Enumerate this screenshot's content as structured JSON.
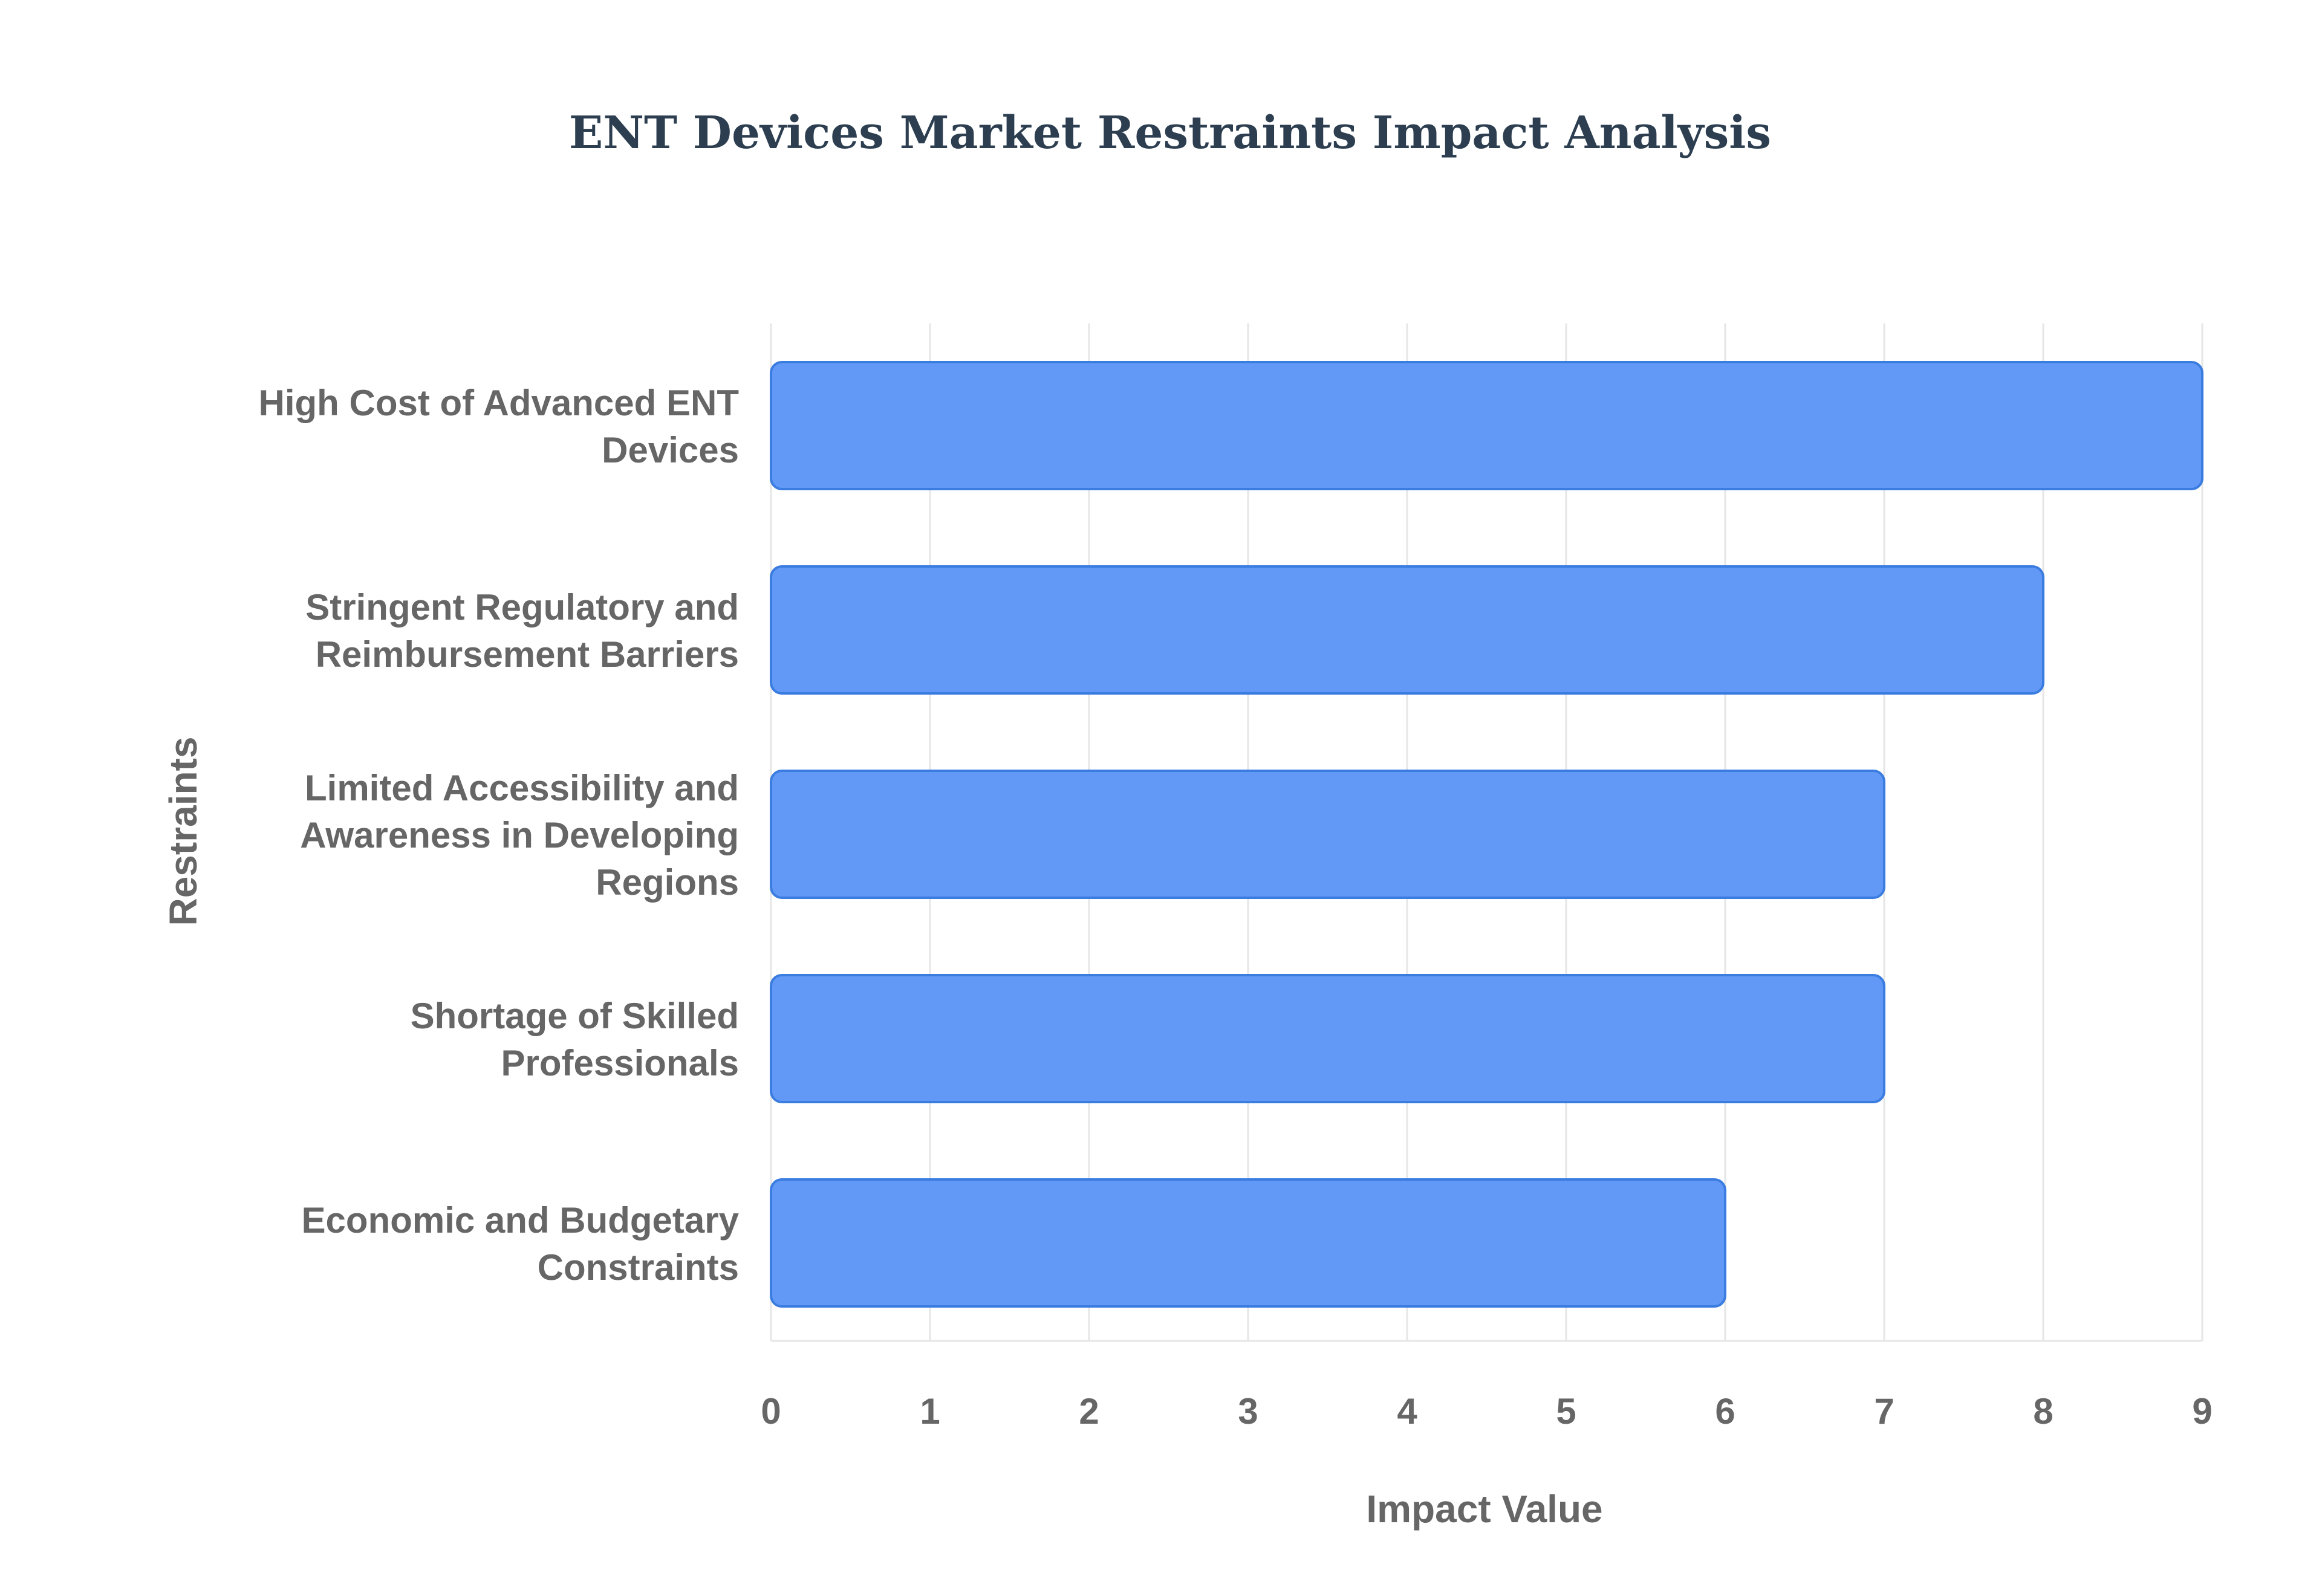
{
  "chart_data": {
    "type": "bar",
    "orientation": "horizontal",
    "title": "ENT Devices Market Restraints Impact Analysis",
    "xlabel": "Impact Value",
    "ylabel": "Restraints",
    "xlim": [
      0,
      9
    ],
    "xticks": [
      "0",
      "1",
      "2",
      "3",
      "4",
      "5",
      "6",
      "7",
      "8",
      "9"
    ],
    "grid": true,
    "categories": [
      [
        "High Cost of Advanced ENT",
        "Devices"
      ],
      [
        "Stringent Regulatory and",
        "Reimbursement Barriers"
      ],
      [
        "Limited Accessibility and",
        "Awareness in Developing",
        "Regions"
      ],
      [
        "Shortage of Skilled",
        "Professionals"
      ],
      [
        "Economic and Budgetary",
        "Constraints"
      ]
    ],
    "values": [
      9,
      8,
      7,
      7,
      6
    ],
    "colors": {
      "bar_fill": "#6399f6",
      "bar_stroke": "#3a7ce0",
      "title": "#2c3e50",
      "label": "#666666",
      "grid": "#e6e6e6"
    }
  }
}
